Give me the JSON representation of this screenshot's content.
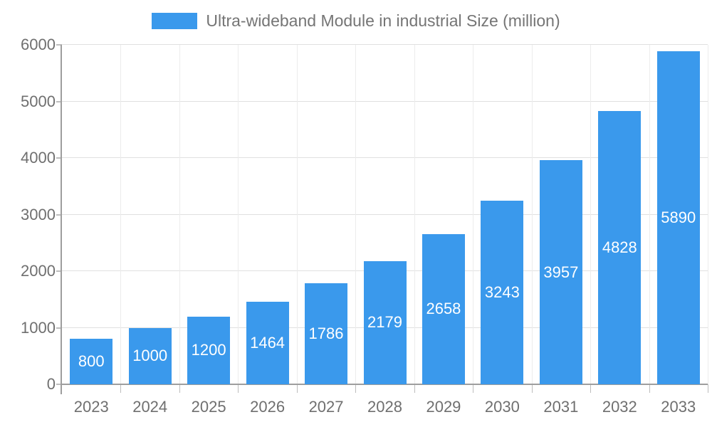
{
  "chart_data": {
    "type": "bar",
    "title": "Ultra-wideband Module in industrial Size (million)",
    "categories": [
      "2023",
      "2024",
      "2025",
      "2026",
      "2027",
      "2028",
      "2029",
      "2030",
      "2031",
      "2032",
      "2033"
    ],
    "series": [
      {
        "name": "Ultra-wideband Module in industrial Size (million)",
        "values": [
          800,
          1000,
          1200,
          1464,
          1786,
          2179,
          2658,
          3243,
          3957,
          4828,
          5890
        ]
      }
    ],
    "xlabel": "",
    "ylabel": "",
    "ylim": [
      0,
      6000
    ],
    "y_ticks": [
      0,
      1000,
      2000,
      3000,
      4000,
      5000,
      6000
    ],
    "grid": true,
    "bar_labels": true,
    "legend_position": "top",
    "colors": {
      "bar": "#3a99ec",
      "bar_label": "#ffffff",
      "axis_text": "#6f6f6f",
      "legend_text": "#757575",
      "axis_line": "#9e9e9e",
      "gridline_h": "#e0e0e0",
      "gridline_v": "#ececec",
      "tick": "#bdbdbd",
      "background": "#ffffff"
    }
  }
}
